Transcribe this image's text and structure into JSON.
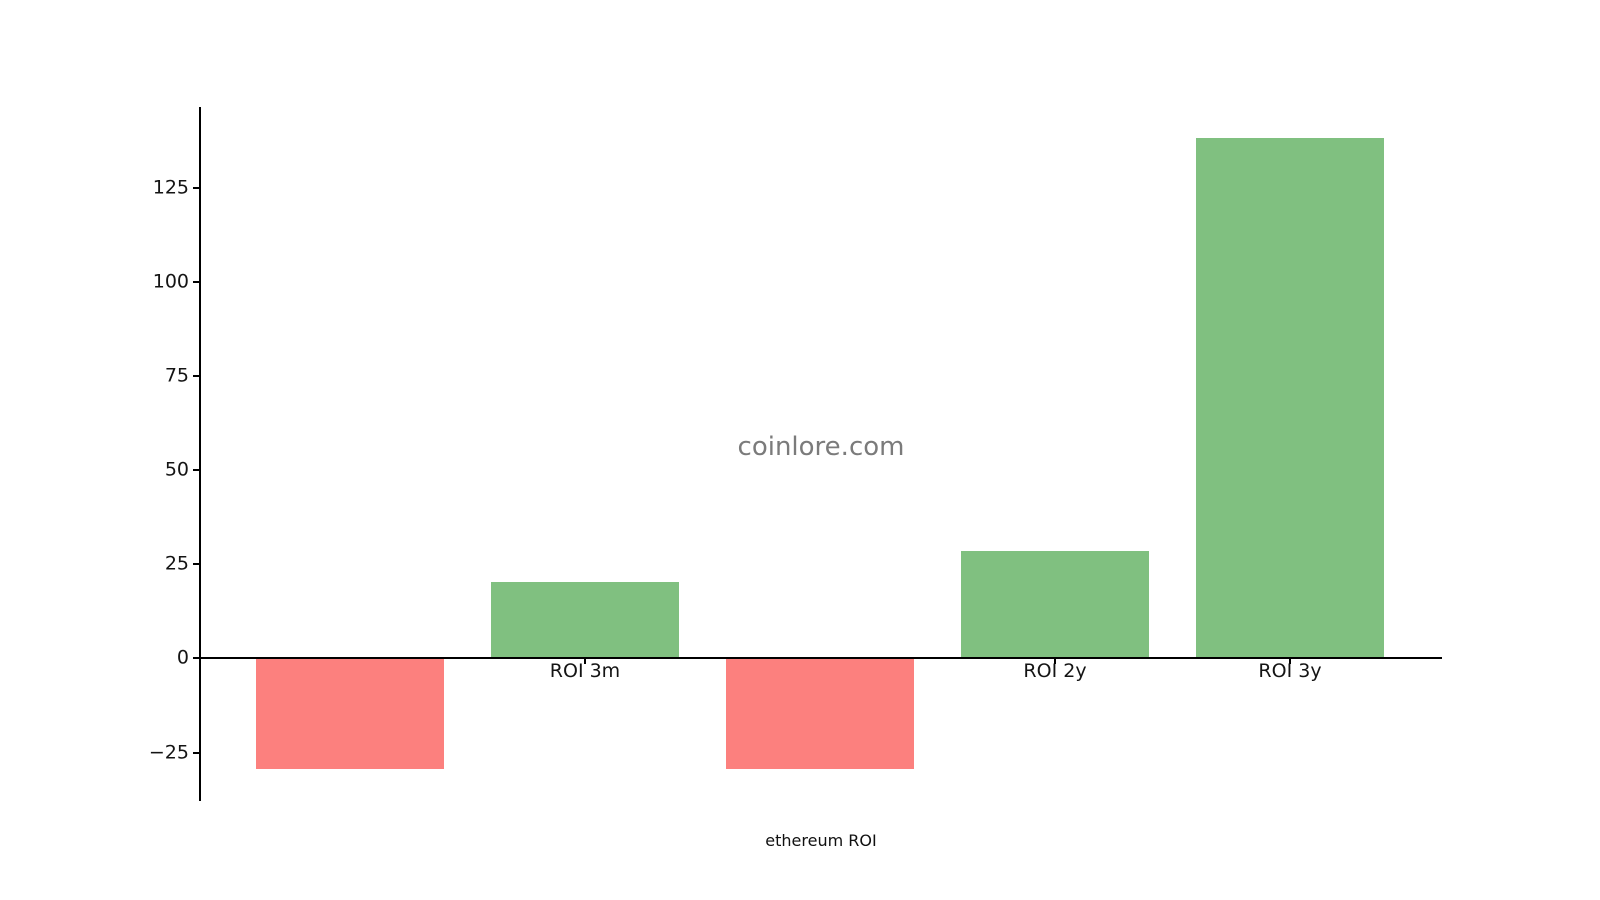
{
  "watermark": {
    "text": "coinlore.com",
    "color": "#7b7b7b"
  },
  "chart_data": {
    "type": "bar",
    "title": "",
    "xlabel": "ethereum ROI",
    "ylabel": "",
    "categories": [
      "",
      "ROI 3m",
      "",
      "ROI 2y",
      "ROI 3y"
    ],
    "values": [
      -29.4,
      20.3,
      -29.5,
      28.5,
      138.1
    ],
    "bars": [
      {
        "label": "",
        "value": -29.4,
        "color": "#fc807e"
      },
      {
        "label": "ROI 3m",
        "value": 20.3,
        "color": "#80c080"
      },
      {
        "label": "",
        "value": -29.5,
        "color": "#fc807e"
      },
      {
        "label": "ROI 2y",
        "value": 28.5,
        "color": "#80c080"
      },
      {
        "label": "ROI 3y",
        "value": 138.1,
        "color": "#80c080"
      }
    ],
    "positive_color": "#80c080",
    "negative_color": "#fc807e",
    "y_ticks": [
      {
        "value": 125,
        "label": "125"
      },
      {
        "value": 100,
        "label": "100"
      },
      {
        "value": 75,
        "label": "75"
      },
      {
        "value": 50,
        "label": "50"
      },
      {
        "value": 25,
        "label": "25"
      },
      {
        "value": 0,
        "label": "0"
      },
      {
        "value": -25,
        "label": "−25"
      }
    ],
    "ylim": [
      -37.6,
      146.4
    ],
    "grid": false,
    "legend_position": "none",
    "axis_color": "#000000",
    "background": "#ffffff"
  }
}
